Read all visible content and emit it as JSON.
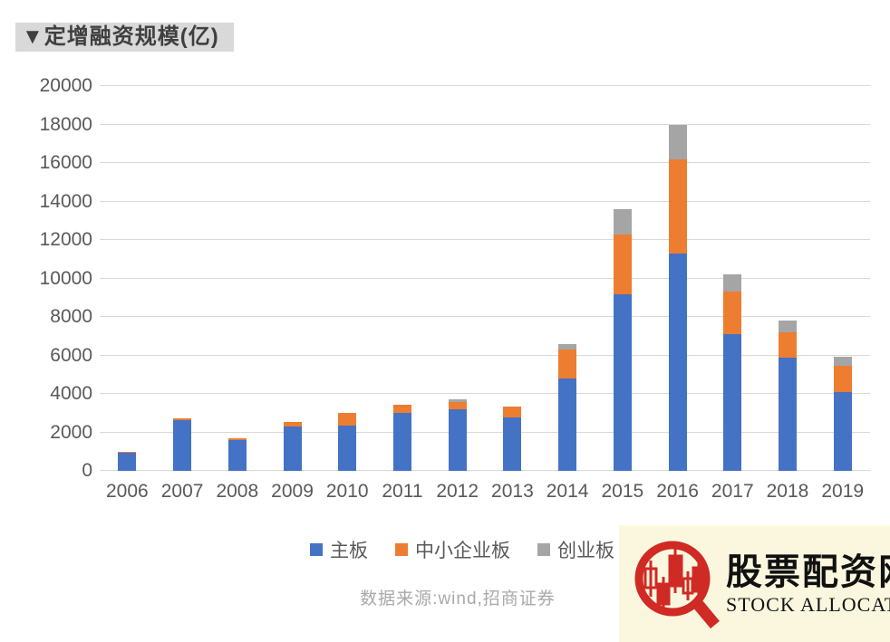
{
  "title": "▼定增融资规模(亿)",
  "source_note": "数据来源:wind,招商证券",
  "logo": {
    "name_cn": "股票配资网",
    "name_en": "STOCK ALLOCATION",
    "icon": "magnifier-candlesticks-icon",
    "red": "#d02a25",
    "background": "#fbf7df"
  },
  "colors": {
    "grid": "#d9d9d9",
    "axis_text": "#595959",
    "title_bg": "#d9d9d9",
    "source_text": "#a9a9a9"
  },
  "chart_data": {
    "type": "bar",
    "stacked": true,
    "title": "定增融资规模(亿)",
    "xlabel": "",
    "ylabel": "",
    "categories": [
      "2006",
      "2007",
      "2008",
      "2009",
      "2010",
      "2011",
      "2012",
      "2013",
      "2014",
      "2015",
      "2016",
      "2017",
      "2018",
      "2019"
    ],
    "series": [
      {
        "name": "主板",
        "color": "#4472c4",
        "values": [
          920,
          2650,
          1620,
          2300,
          2350,
          3000,
          3200,
          2800,
          4800,
          9200,
          11300,
          7100,
          5900,
          4100
        ]
      },
      {
        "name": "中小企业板",
        "color": "#ed7d31",
        "values": [
          80,
          100,
          80,
          250,
          650,
          450,
          400,
          550,
          1500,
          3100,
          4900,
          2200,
          1300,
          1350
        ]
      },
      {
        "name": "创业板",
        "color": "#a5a5a5",
        "values": [
          0,
          0,
          0,
          0,
          0,
          0,
          100,
          0,
          300,
          1300,
          1800,
          900,
          600,
          500
        ]
      }
    ],
    "totals": [
      1000,
      2750,
      1700,
      2550,
      3000,
      3450,
      3700,
      3350,
      6600,
      13600,
      18000,
      10200,
      7800,
      5950
    ],
    "ylim": [
      0,
      20000
    ],
    "ytick_step": 2000,
    "grid": "horizontal",
    "legend_position": "bottom"
  }
}
